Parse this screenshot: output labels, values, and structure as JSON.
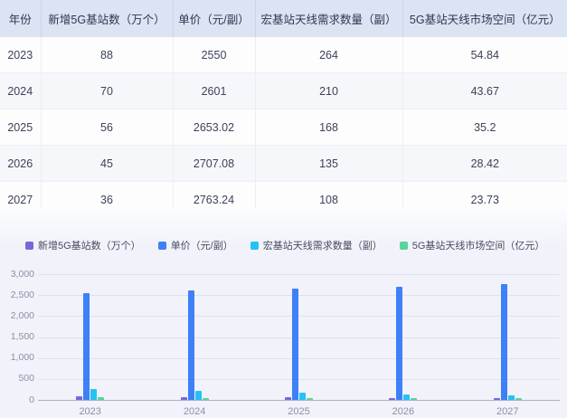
{
  "table": {
    "columns": [
      "年份",
      "新增5G基站数（万个）",
      "单价（元/副）",
      "宏基站天线需求数量（副）",
      "5G基站天线市场空间（亿元）"
    ],
    "rows": [
      [
        "2023",
        "88",
        "2550",
        "264",
        "54.84"
      ],
      [
        "2024",
        "70",
        "2601",
        "210",
        "43.67"
      ],
      [
        "2025",
        "56",
        "2653.02",
        "168",
        "35.2"
      ],
      [
        "2026",
        "45",
        "2707.08",
        "135",
        "28.42"
      ],
      [
        "2027",
        "36",
        "2763.24",
        "108",
        "23.73"
      ]
    ]
  },
  "legend": {
    "items": [
      {
        "label": "新增5G基站数（万个）",
        "color": "#7568d9"
      },
      {
        "label": "单价（元/副）",
        "color": "#3d80f7"
      },
      {
        "label": "宏基站天线需求数量（副）",
        "color": "#24c3f2"
      },
      {
        "label": "5G基站天线市场空间（亿元）",
        "color": "#57d4a0"
      }
    ]
  },
  "chart_data": {
    "type": "bar",
    "categories": [
      "2023",
      "2024",
      "2025",
      "2026",
      "2027"
    ],
    "series": [
      {
        "name": "新增5G基站数（万个）",
        "color": "#7568d9",
        "values": [
          88,
          70,
          56,
          45,
          36
        ]
      },
      {
        "name": "单价（元/副）",
        "color": "#3d80f7",
        "values": [
          2550,
          2601,
          2653.02,
          2707.08,
          2763.24
        ]
      },
      {
        "name": "宏基站天线需求数量（副）",
        "color": "#24c3f2",
        "values": [
          264,
          210,
          168,
          135,
          108
        ]
      },
      {
        "name": "5G基站天线市场空间（亿元）",
        "color": "#57d4a0",
        "values": [
          54.84,
          43.67,
          35.2,
          28.42,
          23.73
        ]
      }
    ],
    "ylim": [
      0,
      3000
    ],
    "ytick_labels": [
      "0",
      "500",
      "1,000",
      "1,500",
      "2,000",
      "2,500",
      "3,000"
    ],
    "grid": true,
    "legend_position": "top"
  },
  "colors": {
    "table_header_bg": "#dce3f3",
    "row_alt_bg": "#f6f7fa",
    "chart_bg": "#f1f2fa",
    "gridline": "#dfe1ec"
  }
}
